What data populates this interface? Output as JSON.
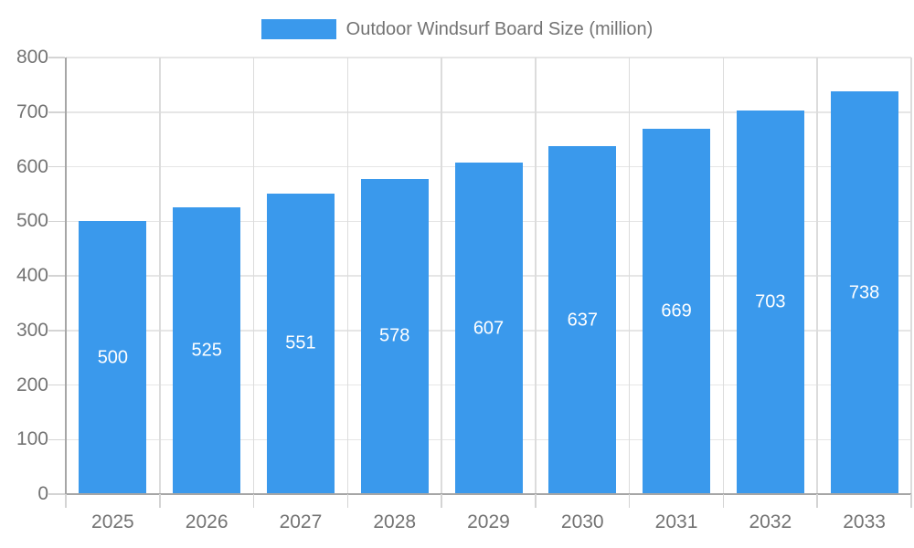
{
  "legend": {
    "label": "Outdoor Windsurf Board Size (million)"
  },
  "chart_data": {
    "type": "bar",
    "title": "Outdoor Windsurf Board Size (million)",
    "categories": [
      "2025",
      "2026",
      "2027",
      "2028",
      "2029",
      "2030",
      "2031",
      "2032",
      "2033"
    ],
    "values": [
      500,
      525,
      551,
      578,
      607,
      637,
      669,
      703,
      738
    ],
    "xlabel": "",
    "ylabel": "",
    "ylim": [
      0,
      800
    ],
    "y_ticks": [
      0,
      100,
      200,
      300,
      400,
      500,
      600,
      700,
      800
    ],
    "grid": true,
    "legend_position": "top",
    "value_labels": "inside-center"
  },
  "colors": {
    "bar": "#3A99EC",
    "value_label": "#ffffff",
    "axis_line": "#a6a6a6",
    "tick": "#d4d4d4",
    "h_grid": "#e6e6e6",
    "v_grid": "#dcdcdc",
    "label_text": "#737373",
    "background": "#ffffff"
  }
}
